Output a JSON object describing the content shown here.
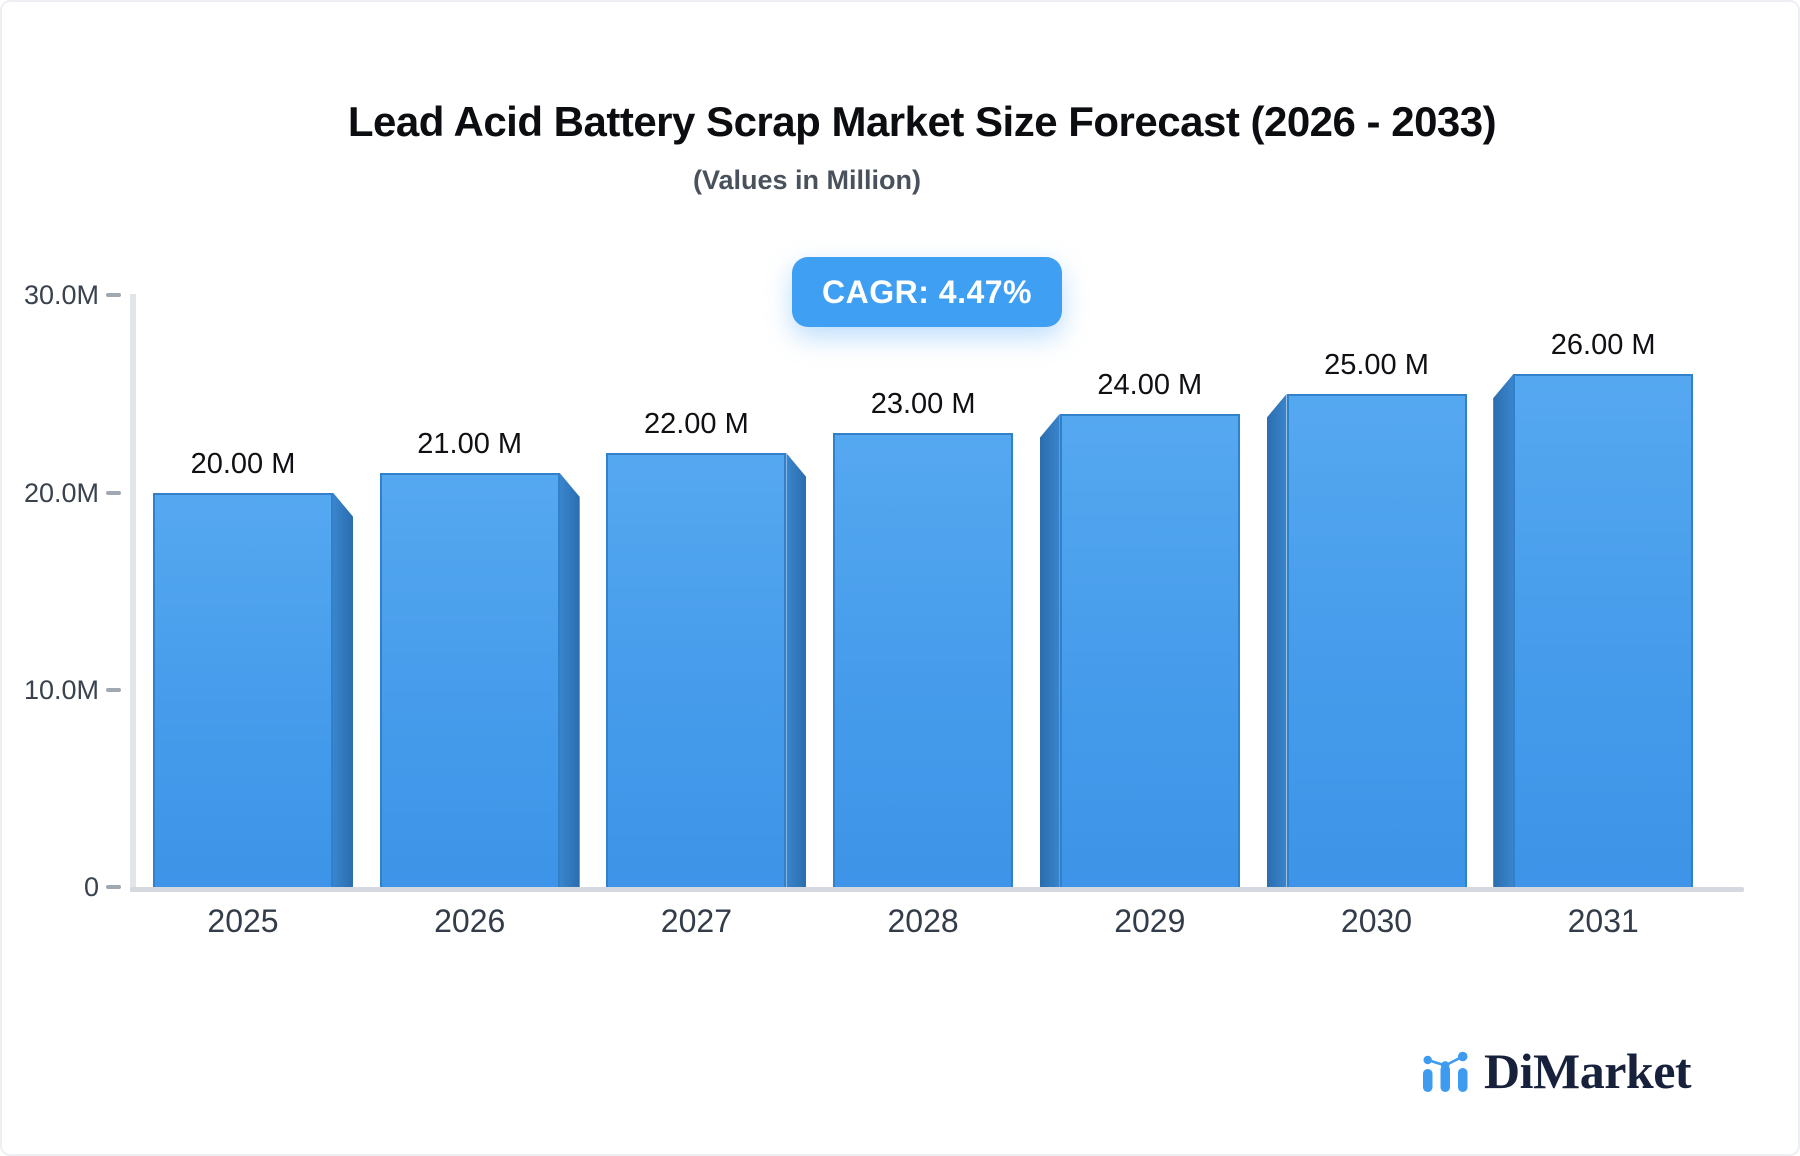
{
  "header": {
    "title": "Lead Acid Battery Scrap Market Size Forecast (2026 - 2033)",
    "subtitle": "(Values in Million)",
    "cagr_label": "CAGR: 4.47%"
  },
  "chart_data": {
    "type": "bar",
    "categories": [
      "2025",
      "2026",
      "2027",
      "2028",
      "2029",
      "2030",
      "2031"
    ],
    "values": [
      20,
      21,
      22,
      23,
      24,
      25,
      26
    ],
    "value_labels": [
      "20.00 M",
      "21.00 M",
      "22.00 M",
      "23.00 M",
      "24.00 M",
      "25.00 M",
      "26.00 M"
    ],
    "unit": "Million",
    "title": "Lead Acid Battery Scrap Market Size Forecast (2026 - 2033)",
    "xlabel": "",
    "ylabel": "",
    "ylim": [
      0,
      30
    ],
    "yticks": [
      {
        "label": "30.0M",
        "value": 30
      },
      {
        "label": "20.0M",
        "value": 20
      },
      {
        "label": "10.0M",
        "value": 10
      },
      {
        "label": "0",
        "value": 0
      }
    ],
    "grid": false,
    "legend": "none",
    "bar_color": "#469ceb",
    "bar_side_color": "#2d74ba",
    "style": "3d-extruded-bars, extrusion faces away from center bar"
  },
  "footer": {
    "brand": "DiMarket",
    "brand_color": "#17213c",
    "icon_color": "#3f9bef"
  }
}
